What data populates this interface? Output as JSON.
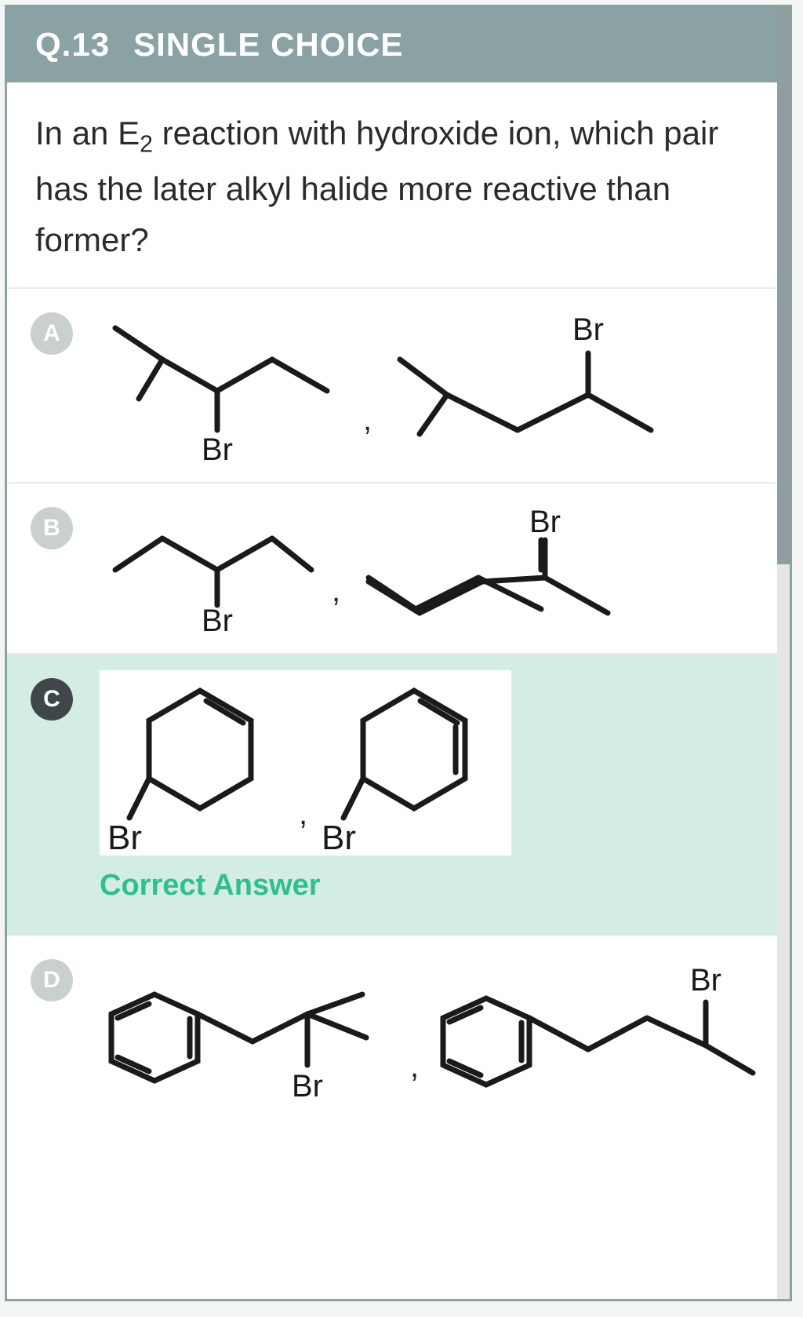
{
  "header": {
    "qnum": "Q.13",
    "type": "SINGLE CHOICE"
  },
  "question_html": "In an E<sub>2</sub> reaction with hydroxide ion, which pair has the later alkyl halide more reactive than former?",
  "options": {
    "A": {
      "letter": "A",
      "selected": false
    },
    "B": {
      "letter": "B",
      "selected": false
    },
    "C": {
      "letter": "C",
      "selected": true,
      "correct_label": "Correct Answer"
    },
    "D": {
      "letter": "D",
      "selected": false
    }
  },
  "colors": {
    "header_bg": "#8aa2a4",
    "correct_bg": "#d3ede4",
    "correct_text": "#2fbf8f",
    "badge_unsel": "#c9d0cf",
    "badge_sel": "#3f474a",
    "bond": "#1a1a1a"
  },
  "br_label": "Br",
  "comma": ","
}
